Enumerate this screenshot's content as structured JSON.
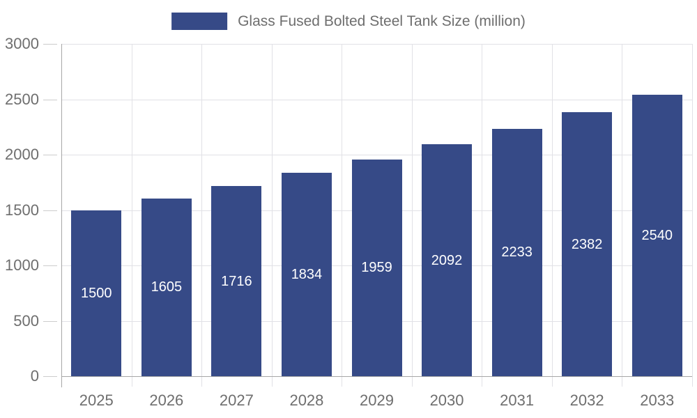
{
  "legend": {
    "label": "Glass Fused Bolted Steel Tank Size (million)"
  },
  "chart_data": {
    "type": "bar",
    "title": "Glass Fused Bolted Steel Tank Size (million)",
    "categories": [
      "2025",
      "2026",
      "2027",
      "2028",
      "2029",
      "2030",
      "2031",
      "2032",
      "2033"
    ],
    "values": [
      1500,
      1605,
      1716,
      1834,
      1959,
      2092,
      2233,
      2382,
      2540
    ],
    "xlabel": "",
    "ylabel": "",
    "ylim": [
      0,
      3000
    ],
    "yticks": [
      0,
      500,
      1000,
      1500,
      2000,
      2500,
      3000
    ],
    "grid": true,
    "value_labels": "inside-center",
    "legend_position": "top-center"
  },
  "colors": {
    "bar": "#364a87",
    "grid": "#e1e1e6",
    "axis": "#a6a6a6",
    "tick": "#cccccc",
    "text": "#6e6e6e",
    "bar_label": "#ffffff",
    "background": "#ffffff"
  }
}
